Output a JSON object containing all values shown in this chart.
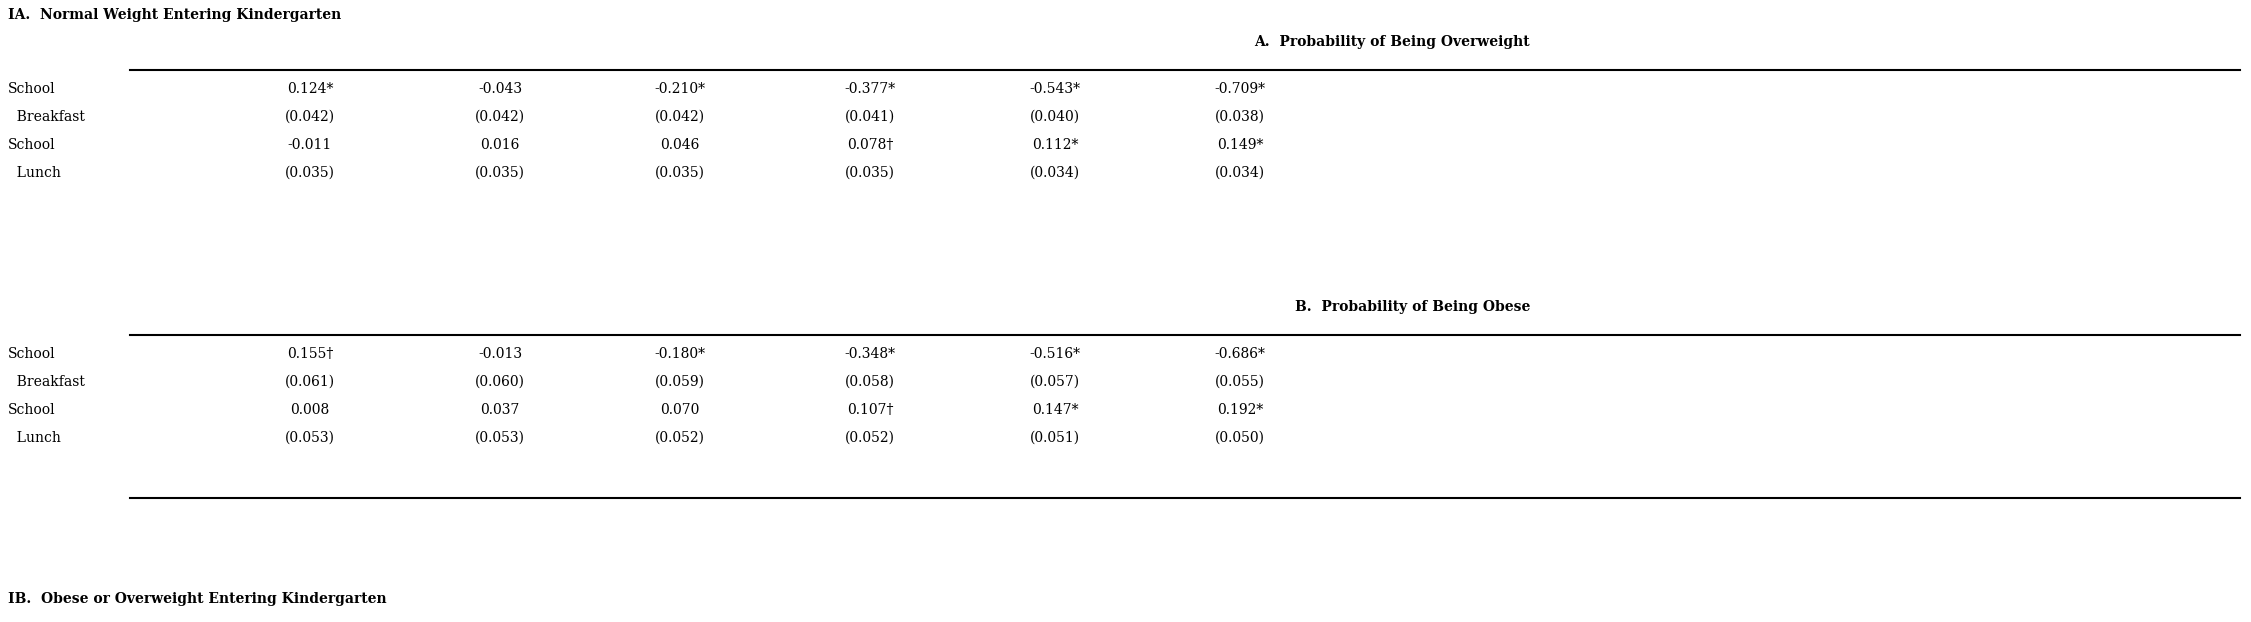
{
  "title_ia": "IA.  Normal Weight Entering Kindergarten",
  "title_ib": "IB.  Obese or Overweight Entering Kindergarten",
  "section_a_header": "A.  Probability of Being Overweight",
  "section_b_header": "B.  Probability of Being Obese",
  "row_labels": [
    "School\n  Breakfast",
    "School\n  Lunch"
  ],
  "row_labels_a": [
    [
      "School",
      "  Breakfast"
    ],
    [
      "School",
      "  Lunch"
    ]
  ],
  "row_labels_b": [
    [
      "School",
      "  Breakfast"
    ],
    [
      "School",
      "  Lunch"
    ]
  ],
  "section_a_data": [
    [
      "0.124*",
      "-0.043",
      "-0.210*",
      "-0.377*",
      "-0.543*",
      "-0.709*"
    ],
    [
      "(0.042)",
      "(0.042)",
      "(0.042)",
      "(0.041)",
      "(0.040)",
      "(0.038)"
    ],
    [
      "-0.011",
      "0.016",
      "0.046",
      "0.078†",
      "0.112*",
      "0.149*"
    ],
    [
      "(0.035)",
      "(0.035)",
      "(0.035)",
      "(0.035)",
      "(0.034)",
      "(0.034)"
    ]
  ],
  "section_b_data": [
    [
      "0.155†",
      "-0.013",
      "-0.180*",
      "-0.348*",
      "-0.516*",
      "-0.686*"
    ],
    [
      "(0.061)",
      "(0.060)",
      "(0.059)",
      "(0.058)",
      "(0.057)",
      "(0.055)"
    ],
    [
      "0.008",
      "0.037",
      "0.070",
      "0.107†",
      "0.147*",
      "0.192*"
    ],
    [
      "(0.053)",
      "(0.053)",
      "(0.052)",
      "(0.052)",
      "(0.051)",
      "(0.050)"
    ]
  ],
  "figsize": [
    22.51,
    6.22
  ],
  "dpi": 100,
  "background": "#ffffff",
  "font_family": "serif",
  "title_fontsize": 10,
  "header_fontsize": 10,
  "data_fontsize": 10,
  "label_fontsize": 10
}
